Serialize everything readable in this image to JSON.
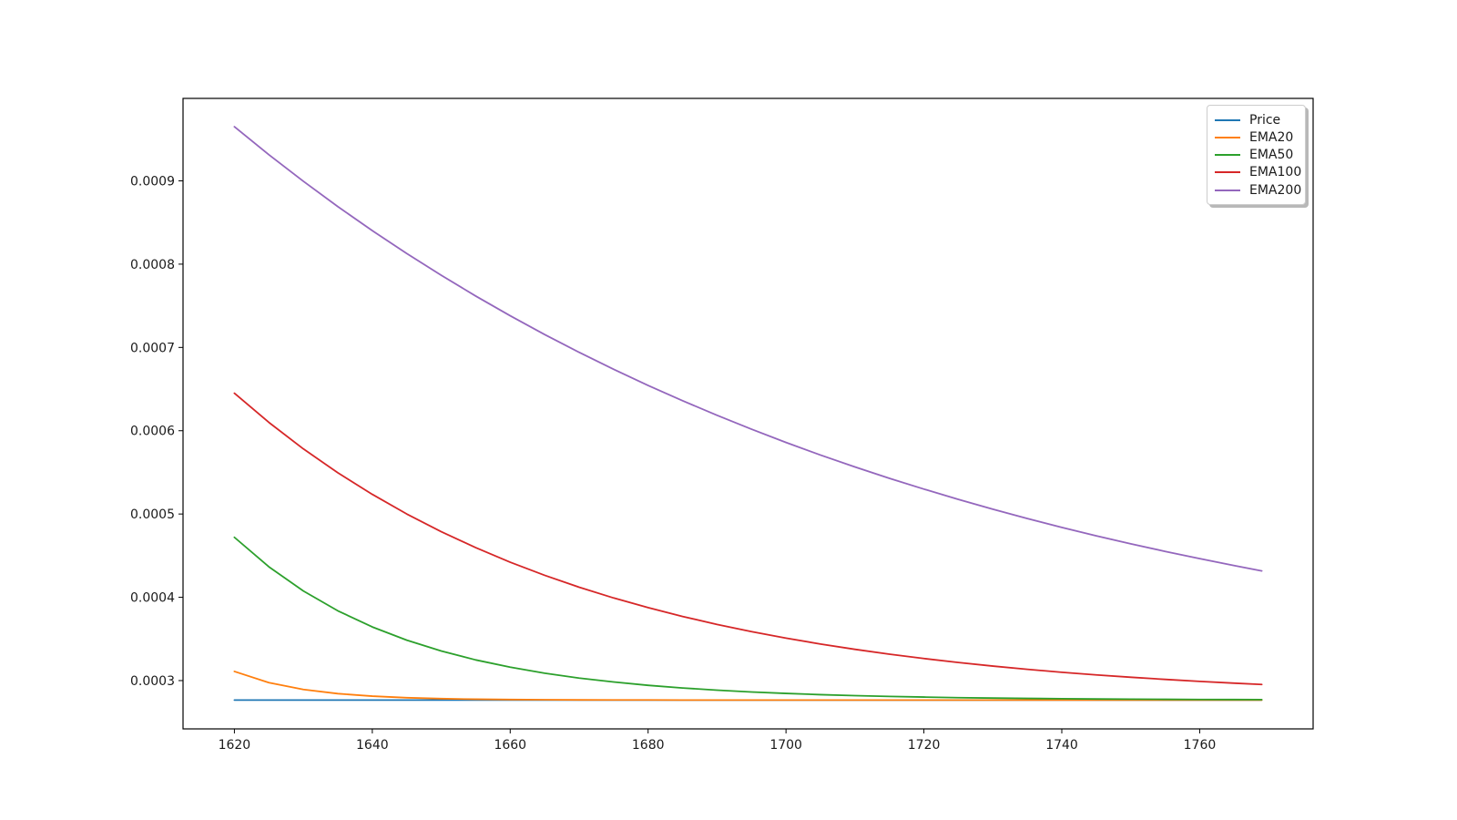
{
  "colors": {
    "background": "#ffffff",
    "axis_frame": "#000000",
    "tick_label": "#1a1a1a",
    "legend_border": "#cccccc",
    "legend_shadow": "#b8b8b8"
  },
  "chart_data": {
    "type": "line",
    "title": "",
    "xlabel": "",
    "ylabel": "",
    "grid": false,
    "legend_position": "upper right",
    "xlim": [
      1612.55,
      1776.45
    ],
    "ylim": [
      0.000242,
      0.000999
    ],
    "x_ticks": {
      "values": [
        1620,
        1640,
        1660,
        1680,
        1700,
        1720,
        1740,
        1760
      ],
      "labels": [
        "1620",
        "1640",
        "1660",
        "1680",
        "1700",
        "1720",
        "1740",
        "1760"
      ]
    },
    "y_ticks": {
      "values": [
        0.0003,
        0.0004,
        0.0005,
        0.0006,
        0.0007,
        0.0008,
        0.0009
      ],
      "labels": [
        "0.0003",
        "0.0004",
        "0.0005",
        "0.0006",
        "0.0007",
        "0.0008",
        "0.0009"
      ]
    },
    "x": [
      1620,
      1625,
      1630,
      1635,
      1640,
      1645,
      1650,
      1655,
      1660,
      1665,
      1670,
      1675,
      1680,
      1685,
      1690,
      1695,
      1700,
      1705,
      1710,
      1715,
      1720,
      1725,
      1730,
      1735,
      1740,
      1745,
      1750,
      1755,
      1760,
      1765,
      1769
    ],
    "series": [
      {
        "name": "Price",
        "color": "#1f77b4",
        "values": [
          0.0002766,
          0.0002766,
          0.0002766,
          0.0002766,
          0.0002766,
          0.0002766,
          0.0002766,
          0.0002766,
          0.0002766,
          0.0002766,
          0.0002766,
          0.0002766,
          0.0002766,
          0.0002766,
          0.0002766,
          0.0002766,
          0.0002766,
          0.0002766,
          0.0002766,
          0.0002766,
          0.0002766,
          0.0002766,
          0.0002766,
          0.0002766,
          0.0002766,
          0.0002766,
          0.0002766,
          0.0002766,
          0.0002766,
          0.0002766,
          0.0002766
        ]
      },
      {
        "name": "EMA20",
        "color": "#ff7f0e",
        "values": [
          0.000311,
          0.0002975,
          0.0002893,
          0.0002843,
          0.0002813,
          0.0002794,
          0.0002783,
          0.0002776,
          0.0002772,
          0.000277,
          0.0002768,
          0.0002767,
          0.0002767,
          0.0002766,
          0.0002766,
          0.0002766,
          0.0002766,
          0.0002766,
          0.0002766,
          0.0002766,
          0.0002766,
          0.0002766,
          0.0002766,
          0.0002766,
          0.0002766,
          0.0002766,
          0.0002766,
          0.0002766,
          0.0002766,
          0.0002766,
          0.0002766
        ]
      },
      {
        "name": "EMA50",
        "color": "#2ca02c",
        "values": [
          0.000472,
          0.0004366,
          0.0004076,
          0.0003838,
          0.0003644,
          0.0003485,
          0.0003355,
          0.0003248,
          0.0003161,
          0.0003089,
          0.000303,
          0.0002983,
          0.0002943,
          0.0002911,
          0.0002885,
          0.0002863,
          0.0002846,
          0.0002831,
          0.0002819,
          0.000281,
          0.0002802,
          0.0002795,
          0.000279,
          0.0002786,
          0.0002782,
          0.0002779,
          0.0002777,
          0.0002775,
          0.0002773,
          0.0002772,
          0.0002771
        ]
      },
      {
        "name": "EMA100",
        "color": "#d62728",
        "values": [
          0.000645,
          0.00061,
          0.0005782,
          0.0005495,
          0.0005236,
          0.0005,
          0.0004788,
          0.0004596,
          0.0004421,
          0.0004264,
          0.0004121,
          0.0003992,
          0.0003876,
          0.000377,
          0.0003674,
          0.0003588,
          0.000351,
          0.0003439,
          0.0003375,
          0.0003317,
          0.0003265,
          0.0003217,
          0.0003174,
          0.0003135,
          0.00031,
          0.0003068,
          0.000304,
          0.0003014,
          0.000299,
          0.0002969,
          0.0002953
        ]
      },
      {
        "name": "EMA200",
        "color": "#9467bd",
        "values": [
          0.000965,
          0.0009314,
          0.0008995,
          0.0008691,
          0.0008402,
          0.0008127,
          0.0007866,
          0.0007617,
          0.000738,
          0.0007155,
          0.0006941,
          0.0006738,
          0.0006544,
          0.000636,
          0.0006185,
          0.0006018,
          0.0005859,
          0.0005708,
          0.0005565,
          0.0005428,
          0.0005299,
          0.0005175,
          0.0005058,
          0.0004946,
          0.0004839,
          0.0004738,
          0.0004642,
          0.0004551,
          0.0004464,
          0.0004381,
          0.0004317
        ]
      }
    ]
  }
}
